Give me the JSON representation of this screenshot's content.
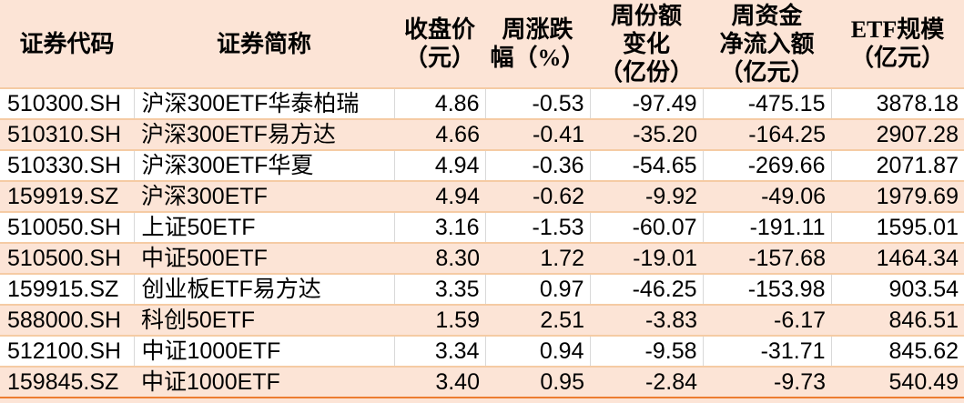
{
  "colors": {
    "row_alt": "#fce4d6",
    "row_border": "#f5cba4",
    "gridline": "#d9d9d9",
    "accent": "#ed7d31",
    "text": "#000000"
  },
  "chart_data": {
    "type": "table",
    "title": "",
    "legend": [],
    "columns": [
      "证券代码",
      "证券简称",
      "收盘价\n（元）",
      "周涨跌\n幅（%）",
      "周份额\n变化\n（亿份）",
      "周资金\n净流入额\n（亿元）",
      "ETF规模\n（亿元）"
    ],
    "rows": [
      [
        "510300.SH",
        "沪深300ETF华泰柏瑞",
        "4.86",
        "-0.53",
        "-97.49",
        "-475.15",
        "3878.18"
      ],
      [
        "510310.SH",
        "沪深300ETF易方达",
        "4.66",
        "-0.41",
        "-35.20",
        "-164.25",
        "2907.28"
      ],
      [
        "510330.SH",
        "沪深300ETF华夏",
        "4.94",
        "-0.36",
        "-54.65",
        "-269.66",
        "2071.87"
      ],
      [
        "159919.SZ",
        "沪深300ETF",
        "4.94",
        "-0.62",
        "-9.92",
        "-49.06",
        "1979.69"
      ],
      [
        "510050.SH",
        "上证50ETF",
        "3.16",
        "-1.53",
        "-60.07",
        "-191.11",
        "1595.01"
      ],
      [
        "510500.SH",
        "中证500ETF",
        "8.30",
        "1.72",
        "-19.01",
        "-157.68",
        "1464.34"
      ],
      [
        "159915.SZ",
        "创业板ETF易方达",
        "3.35",
        "0.97",
        "-46.25",
        "-153.98",
        "903.54"
      ],
      [
        "588000.SH",
        "科创50ETF",
        "1.59",
        "2.51",
        "-3.83",
        "-6.17",
        "846.51"
      ],
      [
        "512100.SH",
        "中证1000ETF",
        "3.34",
        "0.94",
        "-9.58",
        "-31.71",
        "845.62"
      ],
      [
        "159845.SZ",
        "中证1000ETF",
        "3.40",
        "0.95",
        "-2.84",
        "-9.73",
        "540.49"
      ]
    ]
  }
}
